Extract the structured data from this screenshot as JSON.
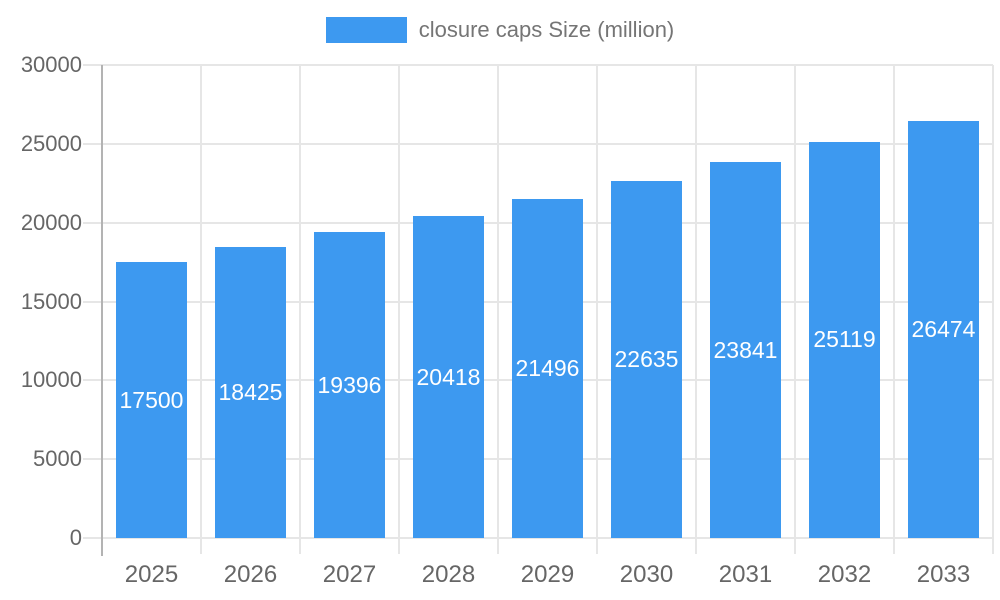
{
  "chart_data": {
    "type": "bar",
    "title": "",
    "xlabel": "",
    "ylabel": "",
    "categories": [
      "2025",
      "2026",
      "2027",
      "2028",
      "2029",
      "2030",
      "2031",
      "2032",
      "2033"
    ],
    "series": [
      {
        "name": "closure caps Size (million)",
        "values": [
          17500,
          18425,
          19396,
          20418,
          21496,
          22635,
          23841,
          25119,
          26474
        ]
      }
    ],
    "ylim": [
      0,
      30000
    ],
    "yticks": [
      0,
      5000,
      10000,
      15000,
      20000,
      25000,
      30000
    ],
    "grid": true,
    "legend_position": "top",
    "values_shown_on_bars": true
  },
  "colors": {
    "bar": "#3d99f0",
    "grid": "#e6e6e6",
    "axis_line": "#b3b3b3",
    "axis_text": "#666666",
    "legend_text": "#757575",
    "bar_label_text": "#ffffff",
    "background": "#ffffff"
  }
}
